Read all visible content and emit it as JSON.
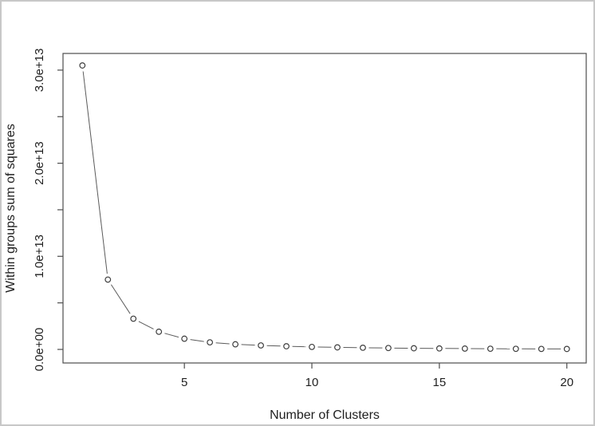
{
  "figure": {
    "background_color": "#ffffff",
    "border_color": "#c8c8c8",
    "frame_color": "#4d4d4d",
    "point_color": "#3d3d3d",
    "line_color": "#5a5a5a",
    "text_color": "#1f1f1f"
  },
  "chart_data": {
    "type": "line",
    "subtype": "points-and-segments (R type='b' elbow plot)",
    "marker": "open-circle",
    "title": "",
    "xlabel": "Number of Clusters",
    "ylabel": "Within groups sum of squares",
    "x": [
      1,
      2,
      3,
      4,
      5,
      6,
      7,
      8,
      9,
      10,
      11,
      12,
      13,
      14,
      15,
      16,
      17,
      18,
      19,
      20
    ],
    "values": [
      30500000000000.0,
      7500000000000.0,
      3300000000000.0,
      1900000000000.0,
      1150000000000.0,
      760000000000.0,
      550000000000.0,
      430000000000.0,
      340000000000.0,
      270000000000.0,
      220000000000.0,
      180000000000.0,
      150000000000.0,
      125000000000.0,
      105000000000.0,
      90000000000.0,
      75000000000.0,
      65000000000.0,
      55000000000.0,
      50000000000.0
    ],
    "xlim": [
      0.24,
      20.76
    ],
    "ylim": [
      -1457000000000.0,
      31790000000000.0
    ],
    "x_ticks": [
      {
        "value": 5,
        "label": "5"
      },
      {
        "value": 10,
        "label": "10"
      },
      {
        "value": 15,
        "label": "15"
      },
      {
        "value": 20,
        "label": "20"
      }
    ],
    "y_ticks": [
      {
        "value": 0,
        "label": "0.0e+00"
      },
      {
        "value": 5000000000000.0,
        "label": ""
      },
      {
        "value": 10000000000000.0,
        "label": "1.0e+13"
      },
      {
        "value": 15000000000000.0,
        "label": ""
      },
      {
        "value": 20000000000000.0,
        "label": "2.0e+13"
      },
      {
        "value": 25000000000000.0,
        "label": ""
      },
      {
        "value": 30000000000000.0,
        "label": "3.0e+13"
      }
    ],
    "grid": false,
    "legend": "none"
  }
}
